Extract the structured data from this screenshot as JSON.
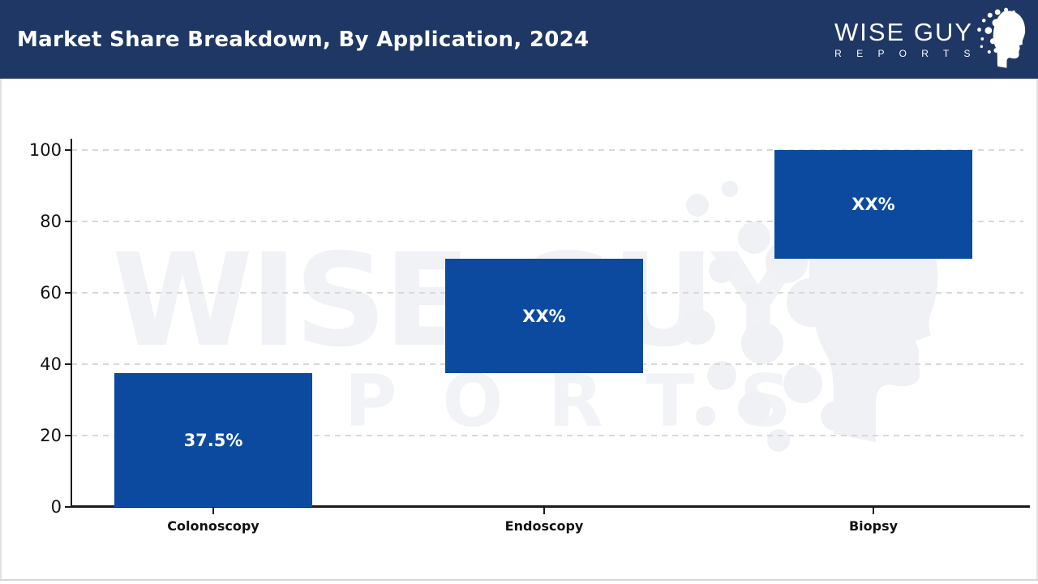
{
  "header": {
    "title": "Market Share Breakdown, By Application, 2024",
    "logo": {
      "line1": "WISE GUY",
      "line2": "R E P O R T S"
    }
  },
  "watermark": {
    "line1": "WISE GUY",
    "line2": "REPORTS"
  },
  "chart_data": {
    "type": "bar",
    "subtype": "stacked-waterfall",
    "title": "Market Share Breakdown, By Application, 2024",
    "categories": [
      "Colonoscopy",
      "Endoscopy",
      "Biopsy"
    ],
    "bars": [
      {
        "category": "Colonoscopy",
        "start": 0,
        "end": 37.5,
        "label": "37.5%"
      },
      {
        "category": "Endoscopy",
        "start": 37.5,
        "end": 69.5,
        "label": "XX%"
      },
      {
        "category": "Biopsy",
        "start": 69.5,
        "end": 100,
        "label": "XX%"
      }
    ],
    "xlabel": "",
    "ylabel": "",
    "ylim": [
      0,
      103
    ],
    "yticks": [
      0,
      20,
      40,
      60,
      80,
      100
    ],
    "grid": "horizontal-dashed",
    "legend": "none",
    "colors": {
      "bar": "#0B4A9F",
      "header_bg": "#1F3765",
      "grid": "#D8D8D8",
      "axis": "#1A1A1A",
      "bar_label": "#FFFFFF",
      "tick_label": "#111111",
      "watermark": "#F1F2F5"
    }
  }
}
